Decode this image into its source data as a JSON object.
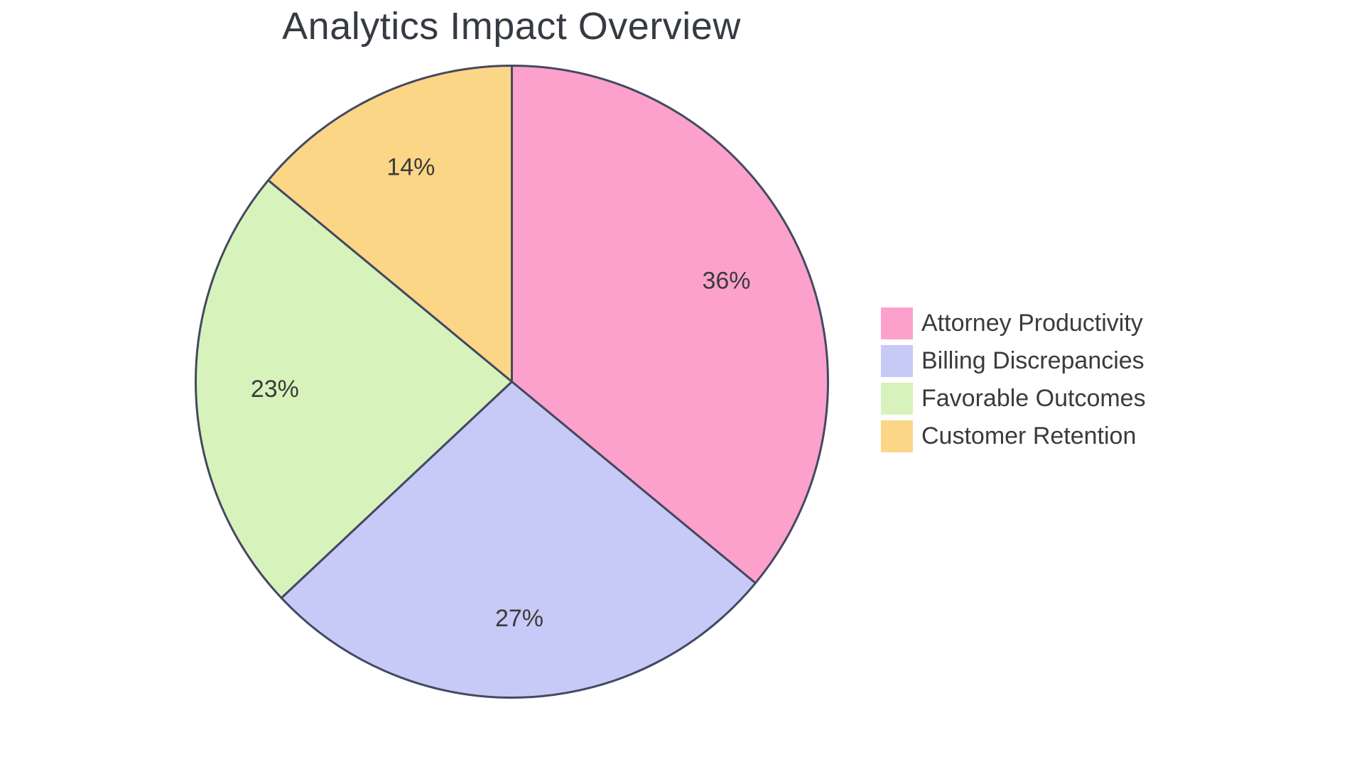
{
  "chart": {
    "title": "Analytics Impact Overview"
  },
  "chart_data": {
    "type": "pie",
    "title": "Analytics Impact Overview",
    "direction": "clockwise",
    "start_angle_deg": 0,
    "legend_position": "right",
    "background_color": "#FFFFFF",
    "slice_border_color": "#434960",
    "label_text_color": "#3B3B3B",
    "title_text_color": "#363A43",
    "slices": [
      {
        "label": "Attorney Productivity",
        "value": 36,
        "pct_label": "36%",
        "color": "#FCA1CC"
      },
      {
        "label": "Billing Discrepancies",
        "value": 27,
        "pct_label": "27%",
        "color": "#C7CAF7"
      },
      {
        "label": "Favorable Outcomes",
        "value": 23,
        "pct_label": "23%",
        "color": "#D7F3BB"
      },
      {
        "label": "Customer Retention",
        "value": 14,
        "pct_label": "14%",
        "color": "#FBD687"
      }
    ]
  }
}
